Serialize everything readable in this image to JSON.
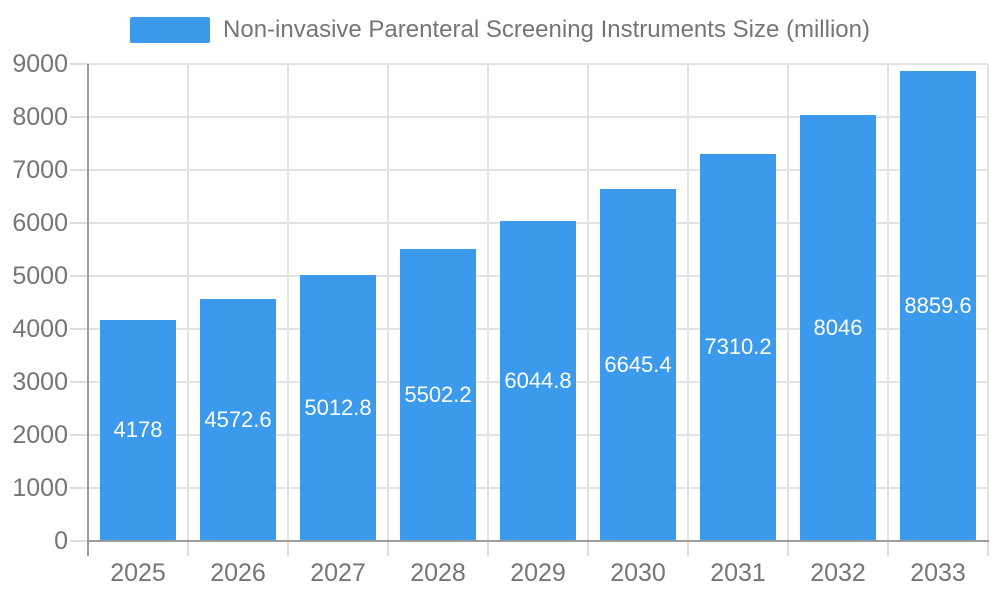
{
  "chart_data": {
    "type": "bar",
    "title": "",
    "legend": "Non-invasive Parenteral Screening Instruments Size (million)",
    "legend_position": "top",
    "categories": [
      "2025",
      "2026",
      "2027",
      "2028",
      "2029",
      "2030",
      "2031",
      "2032",
      "2033"
    ],
    "values": [
      4178,
      4572.6,
      5012.8,
      5502.2,
      6044.8,
      6645.4,
      7310.2,
      8046,
      8859.6
    ],
    "value_labels": [
      "4178",
      "4572.6",
      "5012.8",
      "5502.2",
      "6044.8",
      "6645.4",
      "7310.2",
      "8046",
      "8859.6"
    ],
    "xlabel": "",
    "ylabel": "",
    "ylim": [
      0,
      9000
    ],
    "ytick_step": 1000,
    "ytick_labels": [
      "0",
      "1000",
      "2000",
      "3000",
      "4000",
      "5000",
      "6000",
      "7000",
      "8000",
      "9000"
    ],
    "grid": true,
    "colors": {
      "bar": "#3B9AEC",
      "grid": "#E3E3E3",
      "axis": "#9E9E9E",
      "tick_mark": "#DEDEDE",
      "tick_label": "#757575",
      "value_label": "#FFFFFF",
      "legend_text": "#757575",
      "background": "#FFFFFF"
    }
  }
}
